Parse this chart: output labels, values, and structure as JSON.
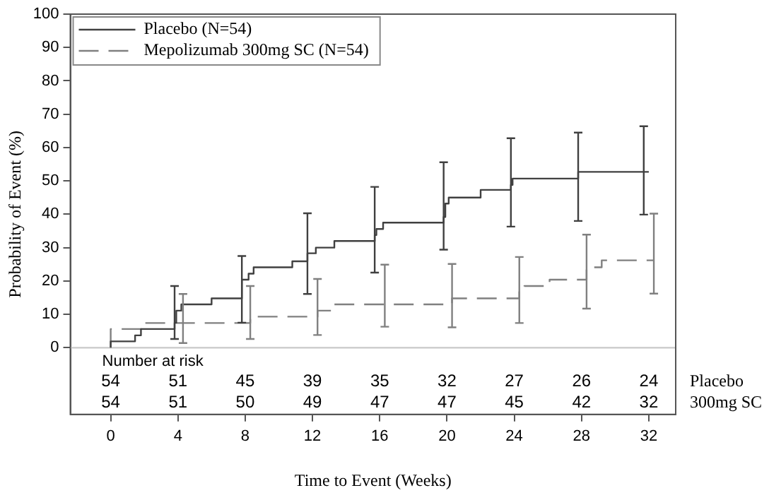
{
  "chart_data": {
    "type": "step",
    "xlabel": "Time to Event (Weeks)",
    "ylabel": "Probability of Event (%)",
    "xlim": [
      -2.4,
      33.6
    ],
    "ylim": [
      -20,
      100
    ],
    "xticks": [
      0,
      4,
      8,
      12,
      16,
      20,
      24,
      28,
      32
    ],
    "yticks": [
      0,
      10,
      20,
      30,
      40,
      50,
      60,
      70,
      80,
      90,
      100
    ],
    "legend": "top left",
    "marker": "none",
    "ref_lines": [
      {
        "axis": "y",
        "value": 0,
        "color": "#c8c8c8"
      }
    ],
    "series": [
      {
        "name": "Placebo (N=54)",
        "color": "#404040",
        "line_style": "solid",
        "x": [
          0,
          1.45,
          1.8,
          2.15,
          3.8,
          3.9,
          4.2,
          6.0,
          7.5,
          7.8,
          8.2,
          8.5,
          10.8,
          11.6,
          11.7,
          12.2,
          13.3,
          14.3,
          15.7,
          15.8,
          16.2,
          17.1,
          19.8,
          19.9,
          20.1,
          22.0,
          23.6,
          23.8,
          23.9,
          24.6,
          27.8,
          28.2,
          31.7,
          32
        ],
        "values": [
          0,
          1.9,
          3.7,
          5.6,
          5.6,
          7.5,
          11.1,
          13.0,
          14.8,
          14.8,
          20.4,
          22.2,
          24.1,
          25.9,
          25.9,
          28.3,
          30.0,
          32.0,
          32.0,
          33.8,
          35.6,
          37.5,
          37.5,
          39.2,
          43.2,
          45.0,
          47.3,
          47.3,
          48.8,
          50.7,
          50.7,
          52.7,
          52.7,
          52.7
        ],
        "errors": [
          null,
          null,
          null,
          null,
          [
            2.6,
            18.5
          ],
          null,
          null,
          null,
          null,
          [
            7.5,
            27.5
          ],
          null,
          null,
          null,
          null,
          [
            16.1,
            40.3
          ],
          null,
          null,
          null,
          [
            22.5,
            48.2
          ],
          null,
          null,
          null,
          [
            29.4,
            55.6
          ],
          null,
          null,
          null,
          null,
          [
            36.3,
            62.8
          ],
          null,
          null,
          [
            38.0,
            64.5
          ],
          null,
          [
            39.9,
            66.4
          ],
          null
        ]
      },
      {
        "name": "Mepolizumab 300mg SC (N=54)",
        "color": "#808080",
        "line_style": "dashed",
        "x": [
          0,
          2.0,
          4.1,
          4.3,
          8.3,
          11.7,
          12.3,
          13.2,
          14.0,
          16.3,
          20.3,
          21.3,
          24.3,
          24.6,
          26.1,
          27.8,
          28.3,
          29.2,
          31.2,
          32.3
        ],
        "values": [
          0,
          5.6,
          7.4,
          7.4,
          7.4,
          9.3,
          9.3,
          11.1,
          13.0,
          13.0,
          13.0,
          14.8,
          14.8,
          16.7,
          18.5,
          20.4,
          20.4,
          24.1,
          26.2,
          26.2
        ],
        "errors": [
          null,
          null,
          null,
          [
            1.4,
            16.1
          ],
          [
            2.6,
            18.5
          ],
          null,
          [
            3.8,
            20.6
          ],
          null,
          null,
          [
            6.3,
            24.9
          ],
          [
            6.1,
            25.1
          ],
          null,
          [
            7.4,
            27.2
          ],
          null,
          null,
          null,
          [
            11.7,
            33.9
          ],
          null,
          null,
          [
            16.2,
            40.2
          ]
        ]
      }
    ],
    "annotations": [
      "Number at risk",
      "54",
      "51",
      "45",
      "39",
      "35",
      "32",
      "27",
      "26",
      "24",
      "54",
      "51",
      "50",
      "49",
      "47",
      "47",
      "45",
      "42",
      "32",
      "Placebo",
      "300mg SC"
    ]
  }
}
